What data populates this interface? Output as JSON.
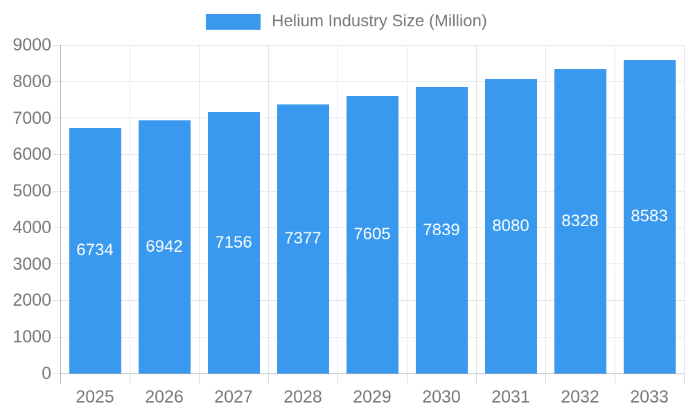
{
  "chart_data": {
    "type": "bar",
    "title": "Helium Industry Size (Million)",
    "categories": [
      "2025",
      "2026",
      "2027",
      "2028",
      "2029",
      "2030",
      "2031",
      "2032",
      "2033"
    ],
    "values": [
      6734,
      6942,
      7156,
      7377,
      7605,
      7839,
      8080,
      8328,
      8583
    ],
    "series": [
      {
        "name": "Helium Industry Size (Million)",
        "values": [
          6734,
          6942,
          7156,
          7377,
          7605,
          7839,
          8080,
          8328,
          8583
        ]
      }
    ],
    "xlabel": "",
    "ylabel": "",
    "ylim": [
      0,
      9000
    ],
    "yticks": [
      0,
      1000,
      2000,
      3000,
      4000,
      5000,
      6000,
      7000,
      8000,
      9000
    ],
    "grid": true,
    "legend_position": "top-center",
    "value_label_position": "inside-center"
  },
  "colors": {
    "bar": "#3899EE",
    "bar_value_text": "#FFFFFF",
    "axis_text": "#757575",
    "legend_text": "#757575",
    "gridline": "#E3E3E3",
    "tick": "#D9D9D9",
    "axis_line": "#ABABAB",
    "background": "#FFFFFF"
  }
}
